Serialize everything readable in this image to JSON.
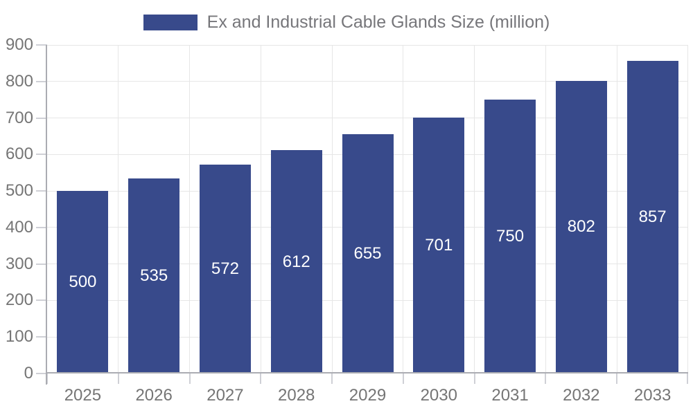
{
  "legend": {
    "label": "Ex and Industrial Cable Glands Size (million)"
  },
  "colors": {
    "bar": "#384a8b",
    "bar_label": "#ffffff",
    "axis_text": "#757575",
    "legend_text": "#76767a",
    "gridline": "#e6e6e6",
    "axis_line": "#abacb2",
    "tick": "#cfd0d6"
  },
  "chart_data": {
    "type": "bar",
    "title": "Ex and Industrial Cable Glands Size (million)",
    "categories": [
      "2025",
      "2026",
      "2027",
      "2028",
      "2029",
      "2030",
      "2031",
      "2032",
      "2033"
    ],
    "values": [
      500,
      535,
      572,
      612,
      655,
      701,
      750,
      802,
      857
    ],
    "series_name": "Ex and Industrial Cable Glands Size (million)",
    "xlabel": "",
    "ylabel": "",
    "ylim": [
      0,
      900
    ],
    "yticks": [
      0,
      100,
      200,
      300,
      400,
      500,
      600,
      700,
      800,
      900
    ],
    "grid": true,
    "legend_position": "top",
    "value_label_position": "inside-center"
  }
}
